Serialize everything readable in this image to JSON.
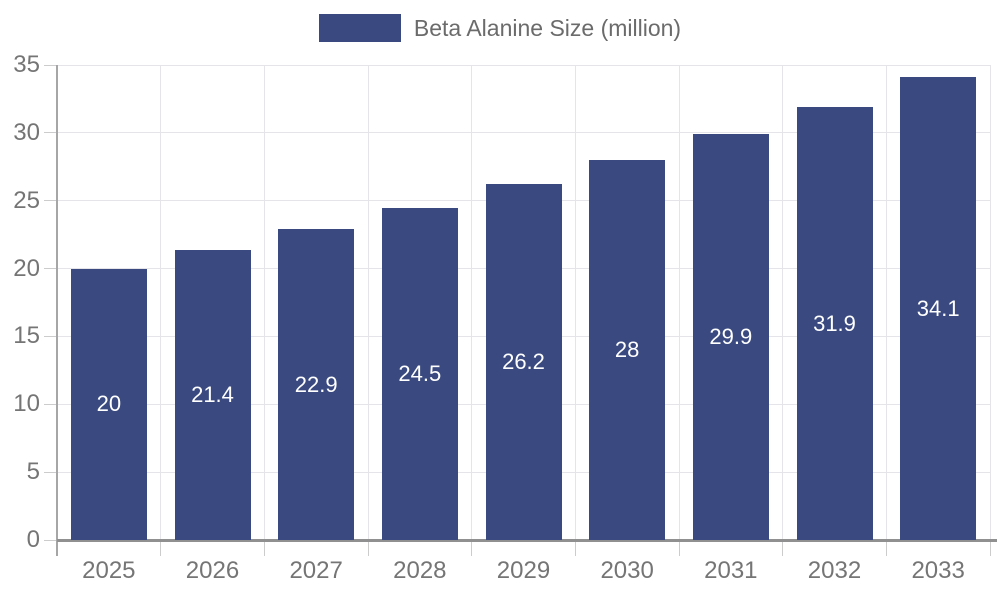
{
  "legend": {
    "label": "Beta Alanine Size (million)"
  },
  "chart_data": {
    "type": "bar",
    "title": "",
    "series_name": "Beta Alanine Size (million)",
    "categories": [
      "2025",
      "2026",
      "2027",
      "2028",
      "2029",
      "2030",
      "2031",
      "2032",
      "2033"
    ],
    "values": [
      20,
      21.4,
      22.9,
      24.5,
      26.2,
      28,
      29.9,
      31.9,
      34.1
    ],
    "xlabel": "",
    "ylabel": "",
    "ylim": [
      0,
      35
    ],
    "yticks": [
      0,
      5,
      10,
      15,
      20,
      25,
      30,
      35
    ],
    "grid": true,
    "legend_position": "top",
    "colors": {
      "bar": "#3a4a80",
      "bar_label": "#ffffff",
      "grid": "#e4e4e9",
      "x_axis": "#909090",
      "y_axis": "#a6a6a6",
      "tick": "#cccccc",
      "tick_label": "#757575",
      "legend_text": "#6b6b6b",
      "background": "#ffffff"
    }
  }
}
